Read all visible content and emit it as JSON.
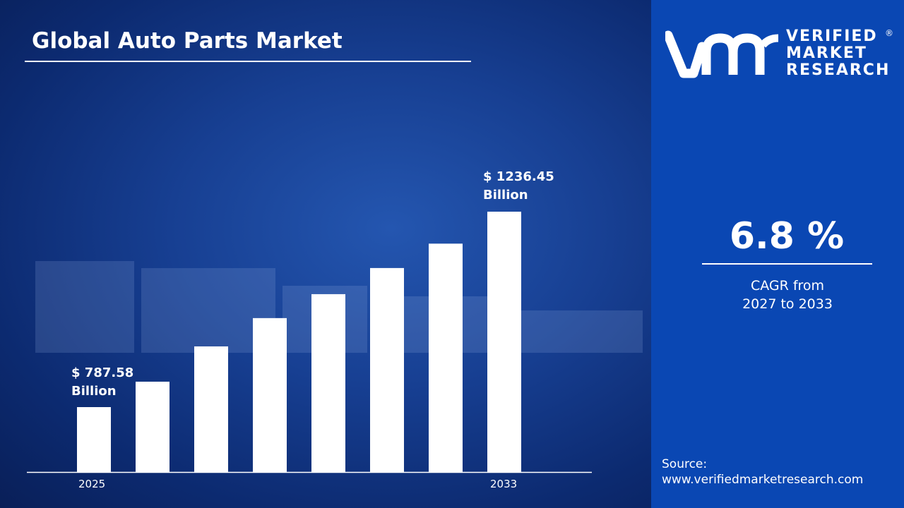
{
  "header": {
    "title": "Global Auto Parts Market"
  },
  "brand": {
    "name_line1": "VERIFIED",
    "name_line2": "MARKET",
    "name_line3": "RESEARCH",
    "registered": "®",
    "logo_text": "vmr"
  },
  "cagr": {
    "value": "6.8 %",
    "line1": "CAGR from",
    "line2": "2027 to 2033"
  },
  "source": {
    "label": "Source:",
    "url": "www.verifiedmarketresearch.com"
  },
  "colors": {
    "panel": "#0a47b3",
    "background": "#0c2a70",
    "bars": "#ffffff"
  },
  "chart_data": {
    "type": "bar",
    "categories": [
      "2025",
      "",
      "",
      "",
      "",
      "",
      "",
      "2033"
    ],
    "values": [
      787.58,
      846,
      927,
      992,
      1047,
      1107,
      1163,
      1236.45
    ],
    "annotations": [
      {
        "index": 0,
        "line1": "$ 787.58",
        "line2": "Billion"
      },
      {
        "index": 7,
        "line1": "$ 1236.45",
        "line2": "Billion"
      }
    ],
    "title": "Global Auto Parts Market",
    "xlabel": "",
    "ylabel": "",
    "grid": false
  }
}
